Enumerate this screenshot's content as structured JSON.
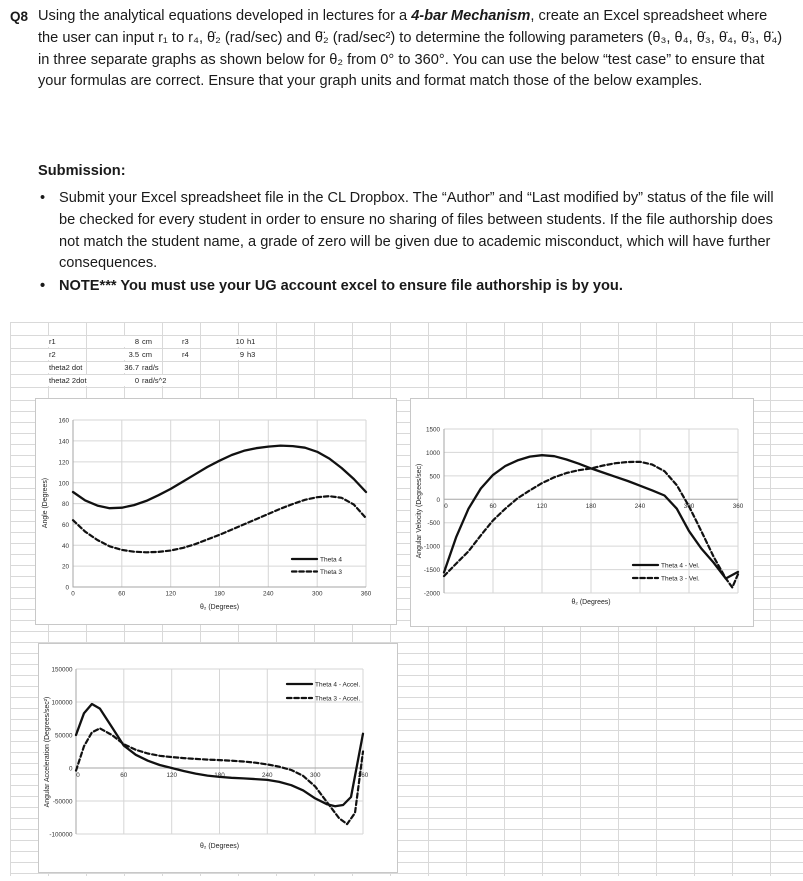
{
  "question": {
    "number": "Q8",
    "text_before": "Using the analytical equations developed in lectures for a ",
    "bold_term": "4-bar Mechanism",
    "text_after": ", create an Excel spreadsheet where the user can input r₁ to r₄, θ̇₂ (rad/sec) and θ̈₂ (rad/sec²) to determine the following parameters (θ₃, θ₄, θ̇₃, θ̇₄, θ̈₃, θ̈₄) in three separate graphs as shown below for θ₂ from 0° to 360°.  You can use the below “test case” to ensure that your formulas are correct. Ensure that your graph units and format match those of the below examples."
  },
  "submission": {
    "heading": "Submission:",
    "bullet_marker": "•",
    "bullet1": "Submit your Excel spreadsheet file in the CL Dropbox. The “Author” and “Last modified by” status of the file will be checked for every student in order to ensure no sharing of files between students.  If the file authorship does not match the student name, a grade of zero will be given due to academic misconduct, which will have further consequences.",
    "bullet2": "NOTE*** You must use your UG account excel to ensure file authorship is by you."
  },
  "spreadsheet": {
    "rows": [
      {
        "c1": "r1",
        "c2": "8",
        "c3": "cm",
        "c4": "r3",
        "c5": "10",
        "c6": "h1"
      },
      {
        "c1": "r2",
        "c2": "3.5",
        "c3": "cm",
        "c4": "r4",
        "c5": "9",
        "c6": "h3"
      },
      {
        "c1": "theta2 dot",
        "c2": "36.7",
        "c3": "rad/s",
        "c4": "",
        "c5": "",
        "c6": ""
      },
      {
        "c1": "theta2 2dot",
        "c2": "0",
        "c3": "rad/s^2",
        "c4": "",
        "c5": "",
        "c6": ""
      }
    ]
  },
  "chart_data": [
    {
      "type": "line",
      "title": "",
      "xlabel": "θ₂ (Degrees)",
      "ylabel": "Angle (Degrees)",
      "xlim": [
        0,
        360
      ],
      "ylim": [
        0,
        160
      ],
      "grid": true,
      "legend_position": "inside-bottom-right",
      "x_ticks": [
        0,
        60,
        120,
        180,
        240,
        300,
        360
      ],
      "x_tick_labels": [
        "0",
        "60",
        "120",
        "180",
        "240",
        "300",
        "360"
      ],
      "y_ticks": [
        0,
        20,
        40,
        60,
        80,
        100,
        120,
        140,
        160
      ],
      "y_tick_labels": [
        "160",
        "140",
        "120",
        "100",
        "80",
        "60",
        "40",
        "20",
        "0"
      ],
      "series": [
        {
          "name": "Theta 4",
          "style": "solid",
          "x": [
            0,
            15,
            30,
            45,
            60,
            75,
            90,
            105,
            120,
            135,
            150,
            165,
            180,
            195,
            210,
            225,
            240,
            255,
            270,
            285,
            300,
            315,
            330,
            345,
            360
          ],
          "y": [
            91,
            83,
            78,
            75.5,
            76,
            78.5,
            82.5,
            88,
            94,
            101,
            108,
            115,
            121,
            126.5,
            130.5,
            133,
            134.5,
            135.5,
            135,
            133.5,
            129.5,
            123,
            114,
            103.5,
            91
          ]
        },
        {
          "name": "Theta 3",
          "style": "dashed",
          "x": [
            0,
            15,
            30,
            45,
            60,
            75,
            90,
            105,
            120,
            135,
            150,
            165,
            180,
            195,
            210,
            225,
            240,
            255,
            270,
            285,
            300,
            315,
            330,
            345,
            360
          ],
          "y": [
            64,
            53,
            45,
            39,
            35.5,
            33.8,
            33.2,
            33.6,
            35,
            37.5,
            41,
            45.5,
            50,
            55,
            60,
            65,
            70,
            75,
            79.5,
            83.5,
            86,
            87,
            85.5,
            79,
            66
          ]
        }
      ]
    },
    {
      "type": "line",
      "title": "",
      "xlabel": "θ₂ (Degrees)",
      "ylabel": "Angular Velocity (Degrees/sec)",
      "xlim": [
        0,
        360
      ],
      "ylim": [
        -2000,
        1500
      ],
      "grid": true,
      "legend_position": "inside-bottom-right",
      "x_ticks": [
        0,
        60,
        120,
        180,
        240,
        300,
        360
      ],
      "x_tick_labels": [
        "0",
        "60",
        "120",
        "180",
        "240",
        "300",
        "360"
      ],
      "y_ticks": [
        -2000,
        -1500,
        -1000,
        -500,
        0,
        500,
        1000,
        1500
      ],
      "y_tick_labels": [
        "1500",
        "1000",
        "500",
        "0",
        "-500",
        "-1000",
        "-1500",
        "-2000"
      ],
      "series": [
        {
          "name": "Theta 4 - Vel.",
          "style": "solid",
          "x": [
            0,
            15,
            30,
            45,
            60,
            75,
            90,
            105,
            120,
            135,
            150,
            165,
            180,
            195,
            210,
            225,
            240,
            255,
            270,
            285,
            300,
            315,
            330,
            345,
            360
          ],
          "y": [
            -1560,
            -800,
            -200,
            230,
            520,
            710,
            830,
            910,
            940,
            920,
            850,
            760,
            660,
            570,
            480,
            390,
            290,
            190,
            80,
            -200,
            -680,
            -1050,
            -1350,
            -1690,
            -1550
          ]
        },
        {
          "name": "Theta 3 - Vel.",
          "style": "dashed",
          "x": [
            0,
            15,
            30,
            45,
            60,
            75,
            90,
            105,
            120,
            135,
            150,
            165,
            180,
            195,
            210,
            225,
            240,
            255,
            270,
            285,
            300,
            315,
            330,
            345,
            353,
            360
          ],
          "y": [
            -1640,
            -1370,
            -1110,
            -770,
            -450,
            -200,
            20,
            190,
            345,
            470,
            560,
            620,
            660,
            720,
            770,
            795,
            800,
            740,
            600,
            300,
            -150,
            -680,
            -1220,
            -1690,
            -1880,
            -1600
          ]
        }
      ]
    },
    {
      "type": "line",
      "title": "",
      "xlabel": "θ₂ (Degrees)",
      "ylabel": "Angular Acceleration (Degrees/sec²)",
      "xlim": [
        0,
        360
      ],
      "ylim": [
        -100000,
        150000
      ],
      "grid": true,
      "legend_position": "inside-top-right",
      "x_ticks": [
        0,
        60,
        120,
        180,
        240,
        300,
        360
      ],
      "x_tick_labels": [
        "0",
        "60",
        "120",
        "180",
        "240",
        "300",
        "360"
      ],
      "y_ticks": [
        -100000,
        -50000,
        0,
        50000,
        100000,
        150000
      ],
      "y_tick_labels": [
        "150000",
        "100000",
        "50000",
        "0",
        "-50000",
        "-100000"
      ],
      "series": [
        {
          "name": "Theta 4 - Accel.",
          "style": "solid",
          "x": [
            0,
            10,
            20,
            30,
            45,
            60,
            75,
            90,
            105,
            120,
            135,
            150,
            165,
            180,
            195,
            210,
            225,
            240,
            255,
            270,
            285,
            300,
            315,
            325,
            335,
            345,
            360
          ],
          "y": [
            50000,
            83000,
            97000,
            90000,
            62000,
            34000,
            20000,
            11000,
            4500,
            0,
            -4500,
            -8500,
            -11500,
            -13500,
            -14800,
            -15800,
            -16800,
            -18000,
            -21000,
            -26000,
            -34000,
            -46000,
            -55000,
            -58000,
            -56000,
            -44000,
            52000
          ]
        },
        {
          "name": "Theta 3 - Accel.",
          "style": "dashed",
          "x": [
            0,
            10,
            20,
            30,
            45,
            60,
            75,
            90,
            105,
            120,
            135,
            150,
            165,
            180,
            195,
            210,
            225,
            240,
            255,
            270,
            285,
            300,
            315,
            330,
            340,
            350,
            360
          ],
          "y": [
            -4000,
            33000,
            54000,
            60000,
            50000,
            36000,
            27500,
            22000,
            18500,
            16500,
            15000,
            13800,
            12800,
            12000,
            11000,
            9800,
            8000,
            5500,
            2000,
            -3000,
            -12000,
            -28000,
            -52000,
            -76000,
            -85000,
            -68000,
            25000
          ]
        }
      ]
    }
  ],
  "colors": {
    "line": "#111111",
    "gridline": "#d6d6d6",
    "sheet_grid": "#d9d9d9",
    "text": "#1a1a1a"
  }
}
